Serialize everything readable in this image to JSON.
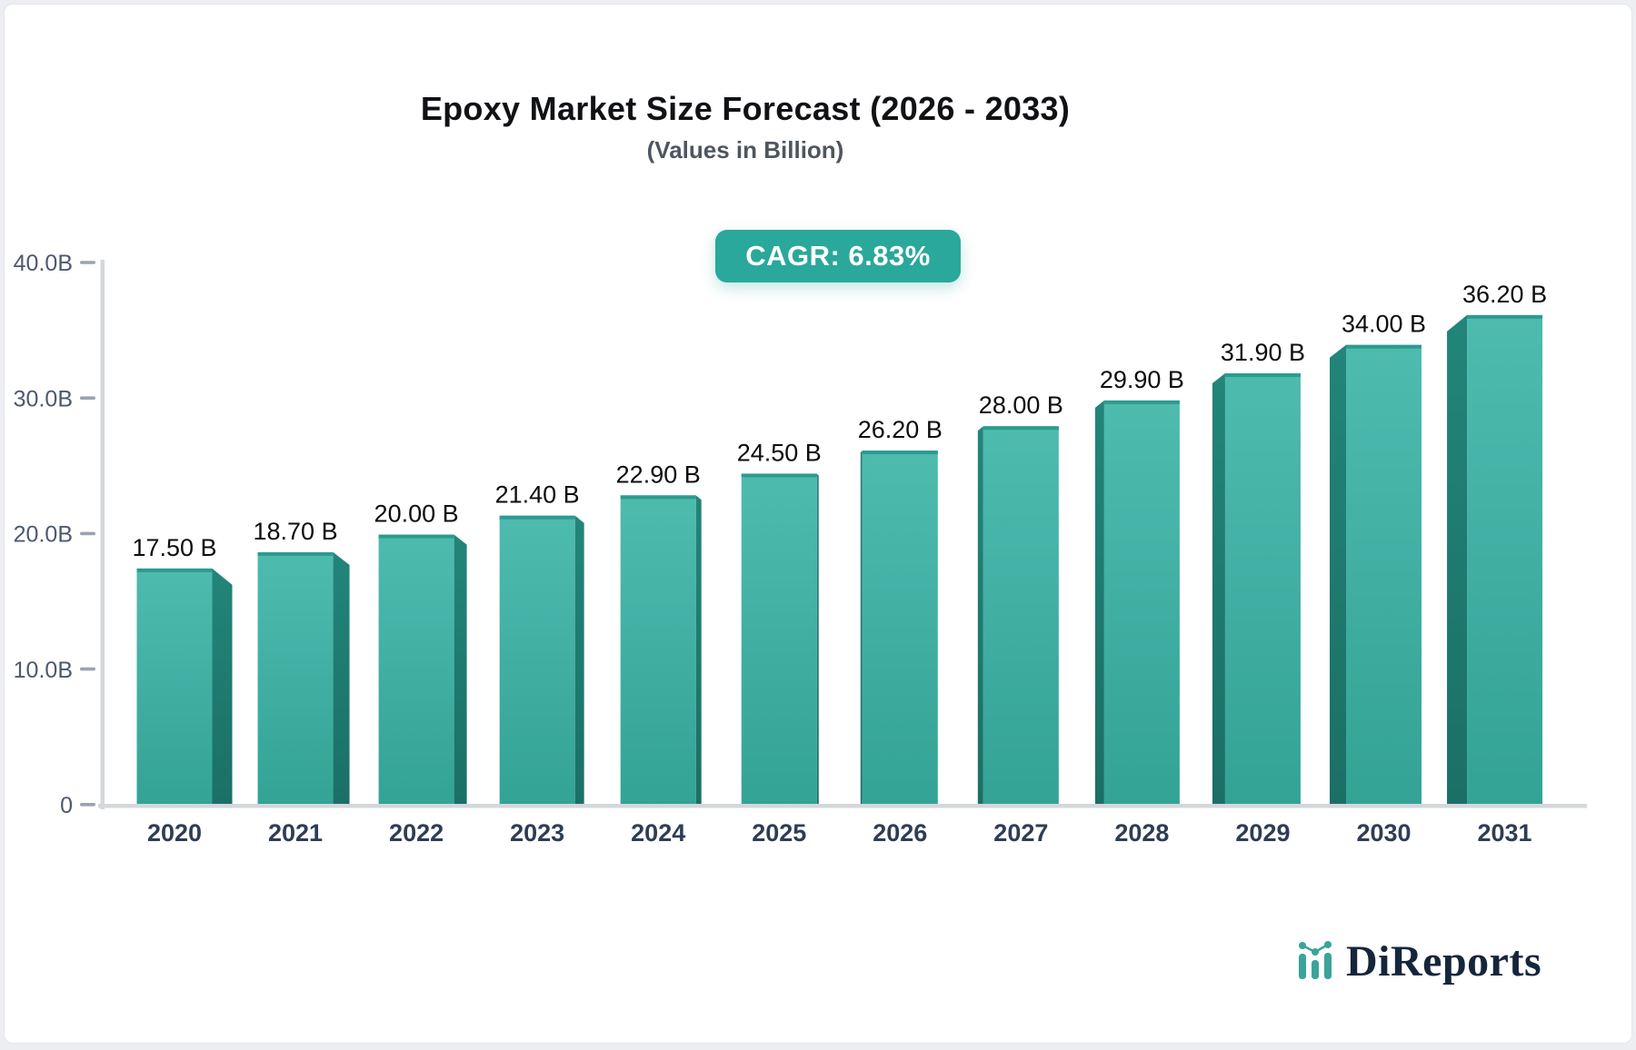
{
  "chart_data": {
    "type": "bar",
    "title": "Epoxy Market Size Forecast (2026 - 2033)",
    "subtitle": "(Values in Billion)",
    "annotation": "CAGR: 6.83%",
    "categories": [
      "2020",
      "2021",
      "2022",
      "2023",
      "2024",
      "2025",
      "2026",
      "2027",
      "2028",
      "2029",
      "2030",
      "2031"
    ],
    "values": [
      17.5,
      18.7,
      20.0,
      21.4,
      22.9,
      24.5,
      26.2,
      28.0,
      29.9,
      31.9,
      34.0,
      36.2
    ],
    "bar_labels": [
      "17.50 B",
      "18.70 B",
      "20.00 B",
      "21.40 B",
      "22.90 B",
      "24.50 B",
      "26.20 B",
      "28.00 B",
      "29.90 B",
      "31.90 B",
      "34.00 B",
      "36.20 B"
    ],
    "y_ticks": [
      {
        "label": "40.0B",
        "value": 40
      },
      {
        "label": "30.0B",
        "value": 30
      },
      {
        "label": "20.0B",
        "value": 20
      },
      {
        "label": "10.0B",
        "value": 10
      },
      {
        "label": "0",
        "value": 0
      }
    ],
    "ylim": [
      0,
      40
    ],
    "xlabel": "",
    "ylabel": "",
    "grid": false,
    "legend": false,
    "style": "3d-perspective-columns"
  },
  "logo": {
    "brand": "DiReports",
    "icon": "mini-bar-line-chart-icon"
  },
  "colors": {
    "accent_teal": "#2aa89b",
    "bar_front_top": "#4ebbaf",
    "bar_front_bottom": "#33a396",
    "bar_side_top": "#22857a",
    "bar_side_bottom": "#1b6f66",
    "bar_top_edge": "#2c9b8f",
    "axis_line": "#d4d7db",
    "tick": "#9aa3ae",
    "y_label": "#4c5a6e",
    "x_label": "#2e3d55",
    "value_label": "#0c0d0f",
    "badge_text": "#ffffff",
    "logo_navy": "#15263c",
    "logo_teal": "#3aa39b"
  }
}
